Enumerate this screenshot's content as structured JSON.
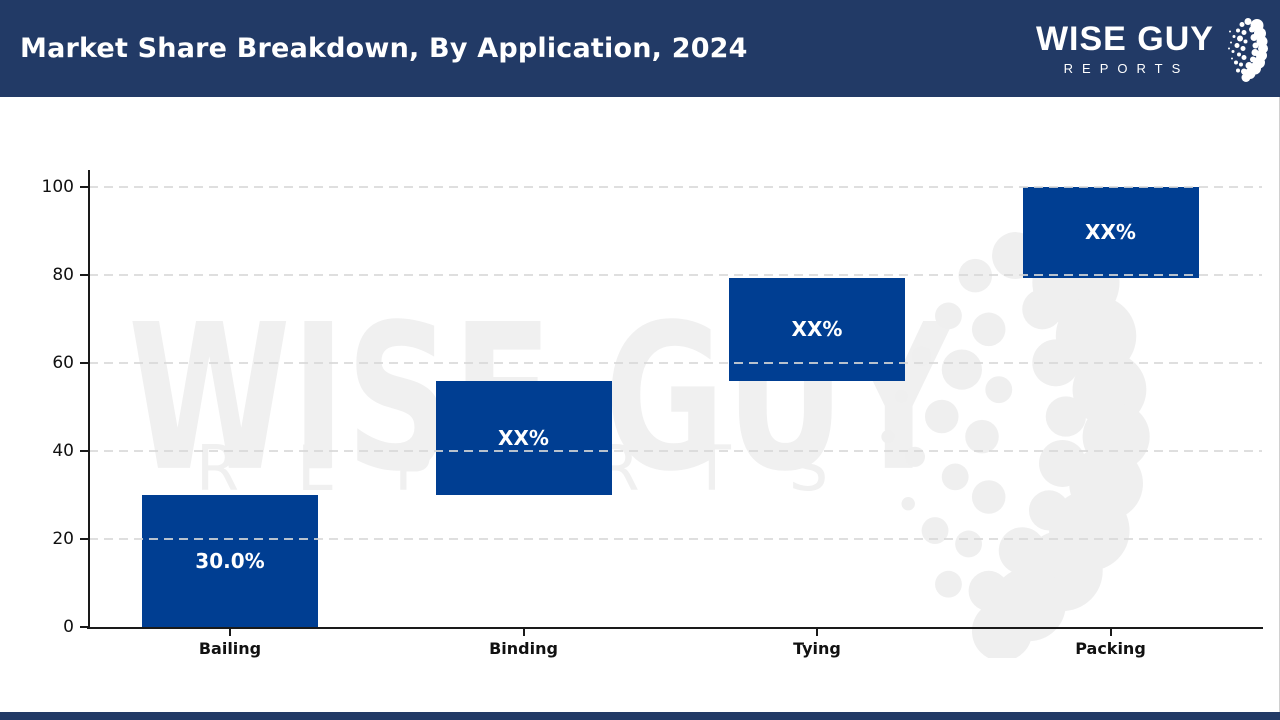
{
  "header": {
    "title": "Market Share Breakdown, By Application, 2024",
    "logo_line1": "WISE GUY",
    "logo_line2": "REPORTS"
  },
  "watermark": {
    "line1": "WISE GUY",
    "line2": "REPORTS"
  },
  "chart_data": {
    "type": "bar",
    "variant": "waterfall-step",
    "title": "Market Share Breakdown, By Application, 2024",
    "categories": [
      "Bailing",
      "Binding",
      "Tying",
      "Packing"
    ],
    "segments": [
      {
        "category": "Bailing",
        "start": 0,
        "end": 30,
        "label": "30.0%"
      },
      {
        "category": "Binding",
        "start": 30,
        "end": 56,
        "label": "XX%"
      },
      {
        "category": "Tying",
        "start": 56,
        "end": 79.4,
        "label": "XX%"
      },
      {
        "category": "Packing",
        "start": 79.4,
        "end": 100,
        "label": "XX%"
      }
    ],
    "xlabel": "",
    "ylabel": "",
    "yticks": [
      0,
      20,
      40,
      60,
      80,
      100
    ],
    "ylim": [
      0,
      104
    ],
    "grid": "horizontal-dashed-over-bars",
    "legend": "none",
    "bar_color": "#003E92"
  },
  "colors": {
    "header_bg": "#223A66",
    "footer_bg": "#223A66",
    "bar": "#003E92",
    "grid": "#D9D9D9",
    "axis": "#1A1A1A",
    "watermark": "#F0F0F0",
    "label_on_bar": "#FFFFFF"
  }
}
